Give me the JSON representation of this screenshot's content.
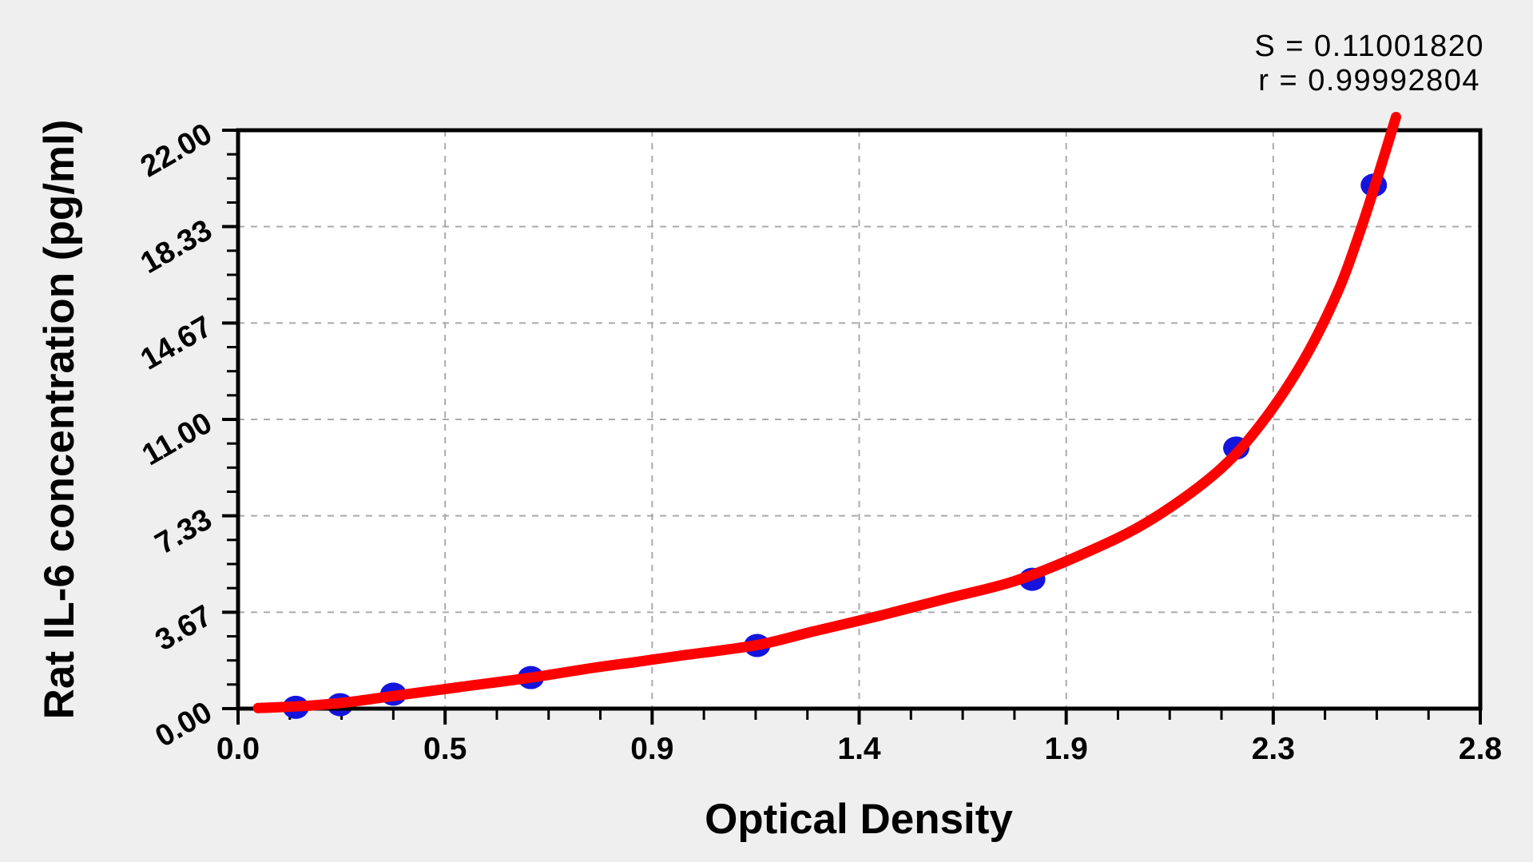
{
  "chart_data": {
    "type": "scatter",
    "title": "",
    "xlabel": "Optical Density",
    "ylabel": "Rat IL-6 concentration (pg/ml)",
    "xlim": [
      0,
      2.8
    ],
    "ylim": [
      0,
      22
    ],
    "x_tick_labels": [
      "0.0",
      "0.5",
      "0.9",
      "1.4",
      "1.9",
      "2.3",
      "2.8"
    ],
    "y_tick_labels": [
      "0.00",
      "3.67",
      "7.33",
      "11.00",
      "14.67",
      "18.33",
      "22.00"
    ],
    "minor_ticks_per_interval": 3,
    "grid": "dashed-at-major-ticks",
    "legend": "none",
    "series": [
      {
        "name": "standard-points",
        "points_od_conc": [
          [
            0.13,
            0.05
          ],
          [
            0.23,
            0.15
          ],
          [
            0.35,
            0.55
          ],
          [
            0.66,
            1.18
          ],
          [
            1.17,
            2.4
          ],
          [
            1.79,
            4.92
          ],
          [
            2.25,
            9.91
          ],
          [
            2.56,
            19.91
          ]
        ]
      }
    ],
    "fit_curve_samples": [
      [
        0.045,
        0.02
      ],
      [
        0.1,
        0.06
      ],
      [
        0.165,
        0.12
      ],
      [
        0.25,
        0.25
      ],
      [
        0.35,
        0.48
      ],
      [
        0.5,
        0.82
      ],
      [
        0.66,
        1.18
      ],
      [
        0.8,
        1.55
      ],
      [
        0.9,
        1.78
      ],
      [
        1.0,
        2.02
      ],
      [
        1.17,
        2.42
      ],
      [
        1.3,
        2.95
      ],
      [
        1.45,
        3.55
      ],
      [
        1.6,
        4.2
      ],
      [
        1.75,
        4.85
      ],
      [
        1.9,
        5.85
      ],
      [
        2.05,
        7.1
      ],
      [
        2.2,
        8.9
      ],
      [
        2.3,
        10.7
      ],
      [
        2.4,
        13.2
      ],
      [
        2.48,
        15.9
      ],
      [
        2.53,
        18.2
      ],
      [
        2.57,
        20.3
      ],
      [
        2.61,
        22.5
      ]
    ],
    "stats": {
      "s_label": "S = 0.11001820",
      "r_label": "r = 0.99992804",
      "S": 0.1100182,
      "r": 0.99992804
    }
  },
  "style": {
    "background_color": "#efefef",
    "plot_background_color": "#ffffff",
    "frame_color": "#000000",
    "grid_color": "#aaaaaa",
    "curve_color": "#ff0000",
    "point_color": "#1414dd",
    "text_color": "#000000"
  }
}
